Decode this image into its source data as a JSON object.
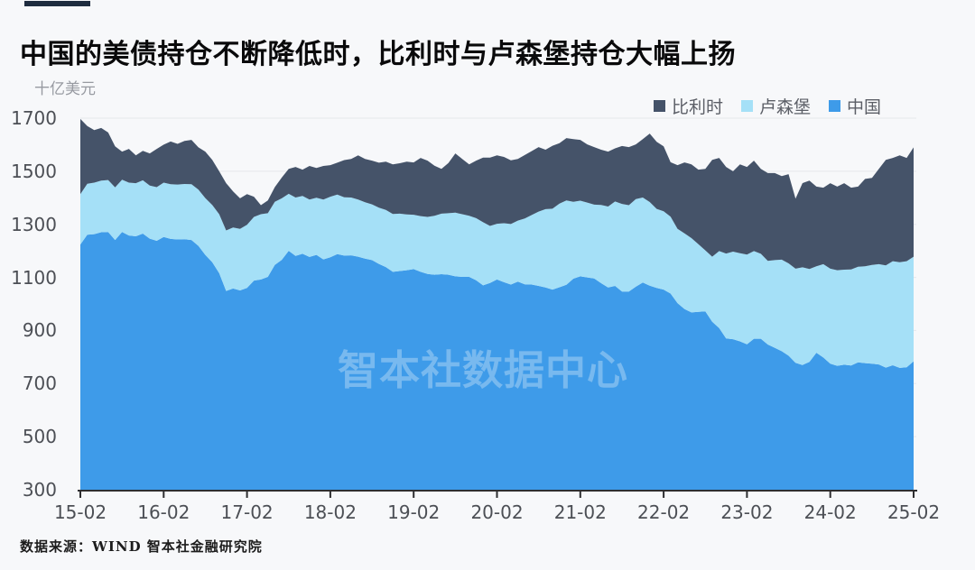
{
  "page": {
    "background": "#f7f8fa",
    "accent_bar_color": "#1e2c3f"
  },
  "header": {
    "title": "中国的美债持仓不断降低时，比利时与卢森堡持仓大幅上扬"
  },
  "legend": {
    "items": [
      {
        "label": "比利时",
        "color": "#455369"
      },
      {
        "label": "卢森堡",
        "color": "#a5e0f7"
      },
      {
        "label": "中国",
        "color": "#3e9be9"
      }
    ]
  },
  "chart": {
    "unit_label": "十亿美元",
    "watermark": "智本社数据中心"
  },
  "footer": {
    "source": "数据来源：WIND 智本社金融研究院"
  },
  "chart_data": {
    "type": "area",
    "stacked": true,
    "title": "中国的美债持仓不断降低时，比利时与卢森堡持仓大幅上扬",
    "ylabel": "十亿美元",
    "ylim": [
      300,
      1700
    ],
    "y_ticks": [
      300,
      500,
      700,
      900,
      1100,
      1300,
      1500,
      1700
    ],
    "grid": true,
    "legend_position": "top-right",
    "x_start": "2015-02",
    "x_end": "2025-02",
    "x_frequency": "monthly",
    "x_tick_labels": [
      "15-02",
      "16-02",
      "17-02",
      "18-02",
      "19-02",
      "20-02",
      "21-02",
      "22-02",
      "23-02",
      "24-02",
      "25-02"
    ],
    "x_ticks_every_n_points": 12,
    "series": [
      {
        "name": "中国",
        "color": "#3e9be9",
        "values": [
          1224,
          1261,
          1263,
          1270,
          1271,
          1241,
          1271,
          1258,
          1255,
          1265,
          1246,
          1238,
          1252,
          1245,
          1243,
          1244,
          1241,
          1219,
          1185,
          1157,
          1116,
          1049,
          1058,
          1051,
          1060,
          1088,
          1092,
          1102,
          1147,
          1166,
          1200,
          1181,
          1189,
          1177,
          1185,
          1168,
          1176,
          1188,
          1182,
          1183,
          1178,
          1171,
          1165,
          1151,
          1139,
          1121,
          1124,
          1127,
          1131,
          1121,
          1113,
          1110,
          1112,
          1110,
          1104,
          1102,
          1102,
          1089,
          1070,
          1079,
          1092,
          1082,
          1073,
          1084,
          1074,
          1073,
          1068,
          1062,
          1054,
          1063,
          1072,
          1095,
          1104,
          1100,
          1096,
          1078,
          1062,
          1068,
          1047,
          1047,
          1065,
          1081,
          1069,
          1060,
          1054,
          1039,
          1003,
          981,
          968,
          970,
          972,
          933,
          909,
          870,
          867,
          859,
          848,
          869,
          869,
          847,
          835,
          822,
          805,
          778,
          770,
          782,
          816,
          798,
          775,
          767,
          771,
          768,
          780,
          777,
          775,
          772,
          760,
          769,
          759,
          761,
          784
        ]
      },
      {
        "name": "卢森堡",
        "color": "#a5e0f7",
        "values": [
          190,
          192,
          194,
          195,
          196,
          198,
          197,
          199,
          200,
          201,
          200,
          202,
          205,
          206,
          207,
          208,
          210,
          212,
          214,
          216,
          222,
          228,
          230,
          232,
          238,
          240,
          246,
          240,
          238,
          232,
          215,
          220,
          218,
          216,
          215,
          225,
          228,
          224,
          220,
          218,
          215,
          212,
          210,
          212,
          215,
          218,
          216,
          210,
          205,
          210,
          215,
          222,
          228,
          232,
          240,
          236,
          230,
          234,
          238,
          215,
          210,
          222,
          228,
          230,
          248,
          262,
          280,
          295,
          305,
          315,
          318,
          290,
          285,
          282,
          278,
          295,
          305,
          318,
          330,
          325,
          330,
          320,
          315,
          298,
          295,
          290,
          280,
          285,
          280,
          255,
          230,
          245,
          290,
          320,
          330,
          332,
          338,
          330,
          320,
          315,
          330,
          345,
          348,
          355,
          368,
          350,
          326,
          352,
          358,
          360,
          358,
          362,
          360,
          365,
          372,
          378,
          385,
          392,
          398,
          400,
          394
        ]
      },
      {
        "name": "比利时",
        "color": "#455369",
        "values": [
          283,
          217,
          198,
          198,
          179,
          155,
          106,
          127,
          105,
          111,
          121,
          144,
          143,
          161,
          153,
          162,
          167,
          159,
          175,
          170,
          162,
          178,
          136,
          115,
          116,
          76,
          34,
          48,
          55,
          78,
          94,
          115,
          99,
          127,
          112,
          127,
          119,
          120,
          140,
          145,
          167,
          163,
          165,
          169,
          182,
          187,
          190,
          199,
          197,
          219,
          212,
          189,
          169,
          189,
          223,
          208,
          194,
          217,
          243,
          257,
          258,
          250,
          240,
          232,
          239,
          241,
          243,
          224,
          237,
          228,
          235,
          236,
          229,
          219,
          217,
          208,
          207,
          200,
          218,
          219,
          206,
          220,
          258,
          253,
          245,
          205,
          240,
          267,
          278,
          281,
          307,
          365,
          351,
          326,
          303,
          335,
          330,
          341,
          320,
          331,
          328,
          315,
          336,
          264,
          317,
          333,
          300,
          288,
          322,
          315,
          326,
          308,
          302,
          329,
          328,
          359,
          398,
          389,
          403,
          389,
          412
        ]
      }
    ]
  }
}
